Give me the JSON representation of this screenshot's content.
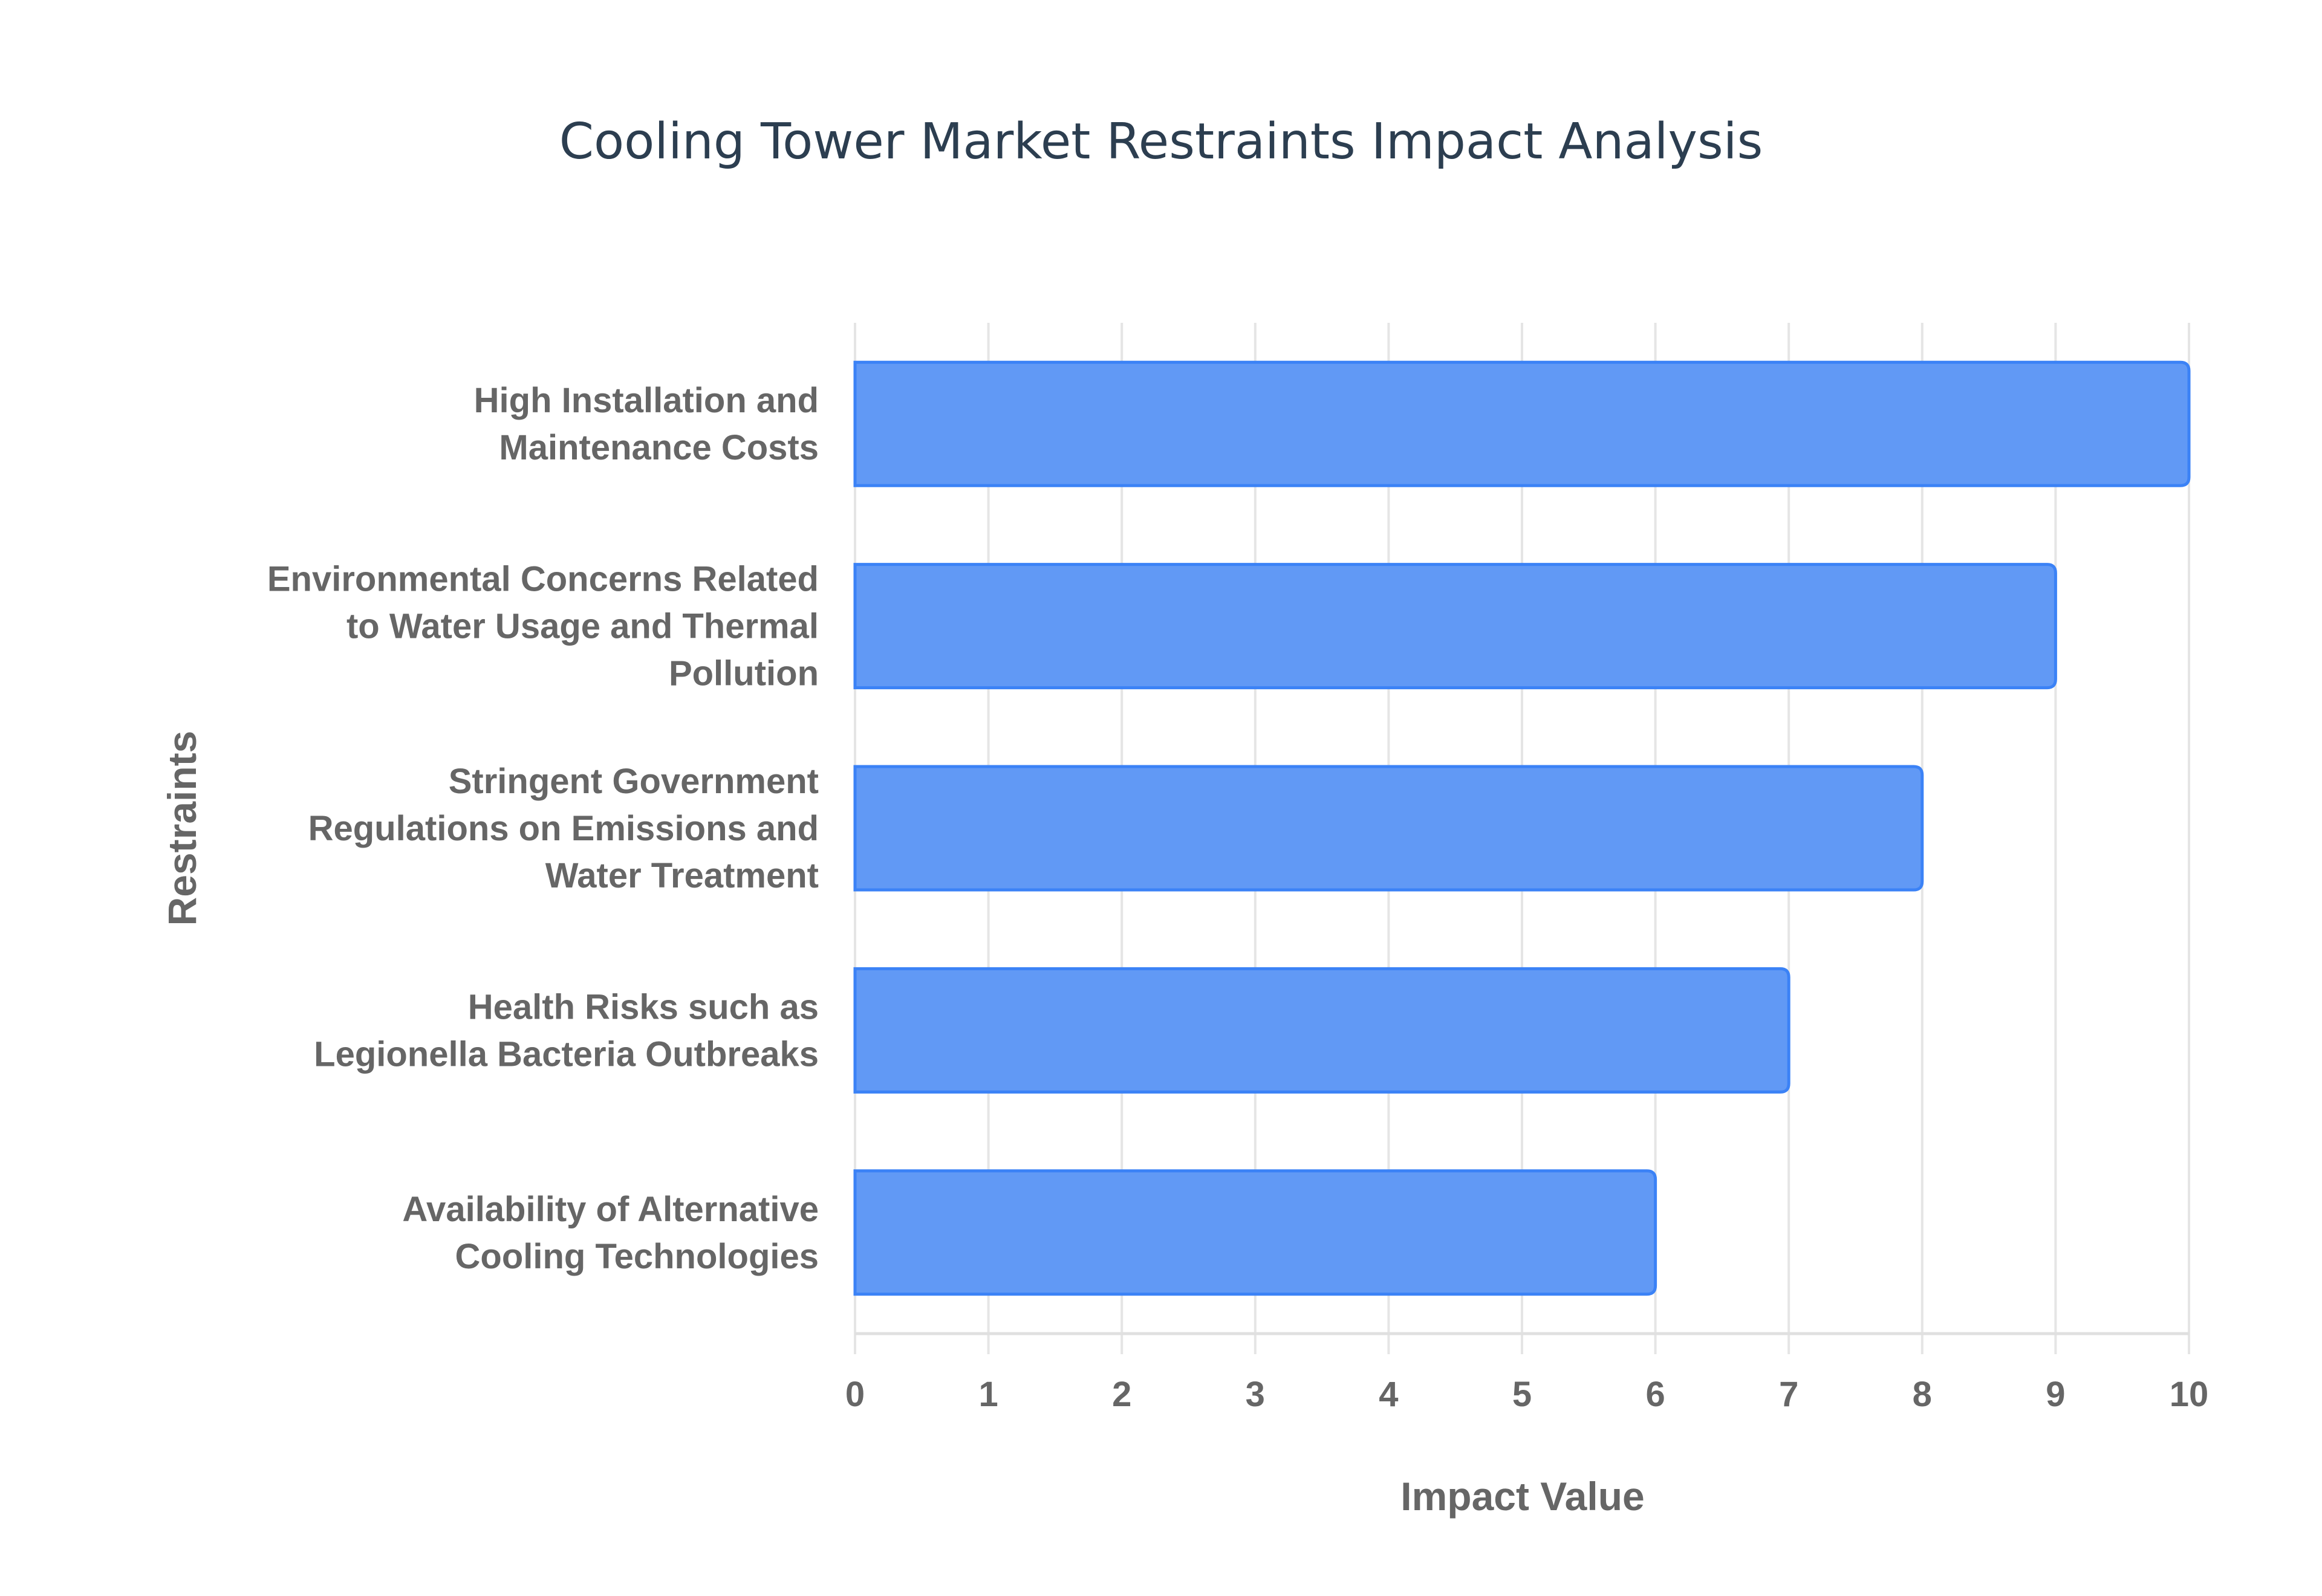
{
  "chart_data": {
    "type": "bar",
    "orientation": "horizontal",
    "title": "Cooling Tower Market Restraints Impact Analysis",
    "xlabel": "Impact Value",
    "ylabel": "Restraints",
    "xlim": [
      0,
      10
    ],
    "xticks": [
      "0",
      "1",
      "2",
      "3",
      "4",
      "5",
      "6",
      "7",
      "8",
      "9",
      "10"
    ],
    "grid": true,
    "categories": [
      [
        "High Installation and",
        "Maintenance Costs"
      ],
      [
        "Environmental Concerns Related",
        "to Water Usage and Thermal",
        "Pollution"
      ],
      [
        "Stringent Government",
        "Regulations on Emissions and",
        "Water Treatment"
      ],
      [
        "Health Risks such as",
        "Legionella Bacteria Outbreaks"
      ],
      [
        "Availability of Alternative",
        "Cooling Technologies"
      ]
    ],
    "values": [
      10,
      9,
      8,
      7,
      6
    ],
    "colors": {
      "bar_fill": "#6199f5",
      "bar_border": "#3b82f6",
      "grid": "#e5e5e5",
      "text": "#666666",
      "title": "#2c3e50"
    }
  }
}
